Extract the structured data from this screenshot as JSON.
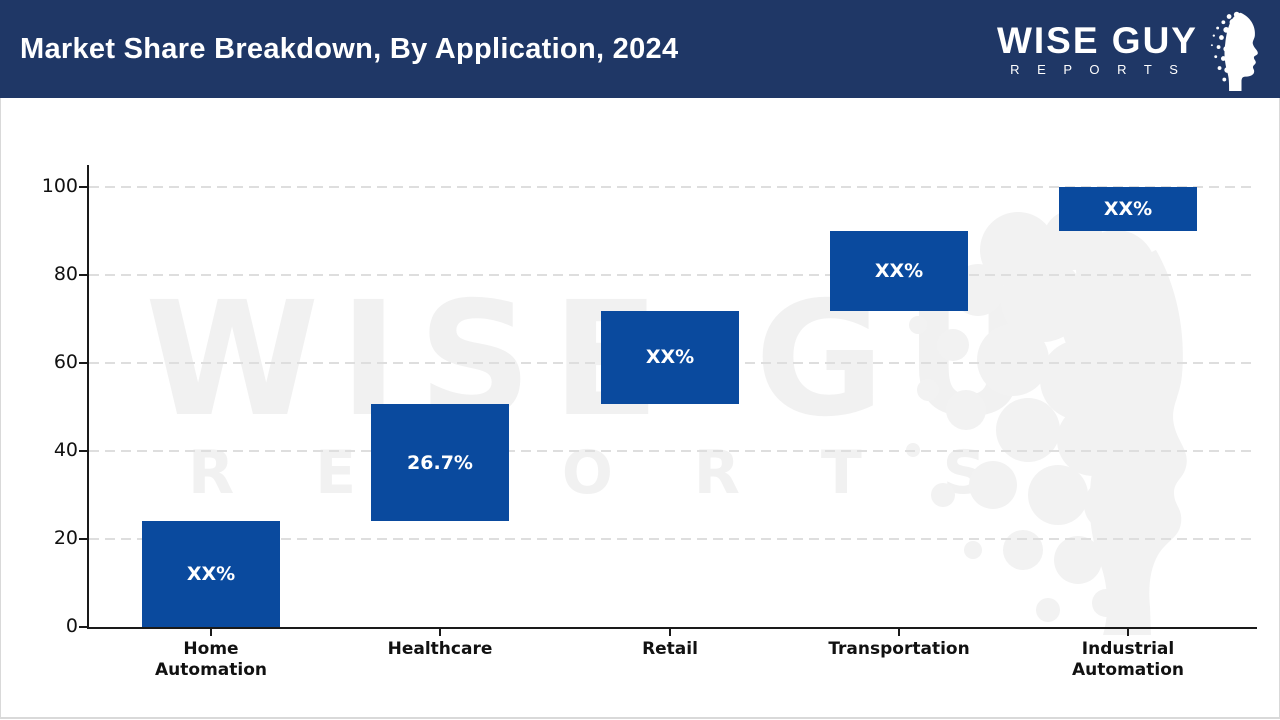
{
  "header": {
    "title": "Market Share Breakdown, By Application, 2024",
    "background_color": "#1F3766",
    "logo": {
      "line1": "WISE GUY",
      "line2": "R E P O R T S"
    }
  },
  "watermark": {
    "line1": "WISE GUY",
    "line2": "R E P O R T S"
  },
  "chart_data": {
    "type": "bar",
    "variant": "floating-stacked-breakdown",
    "title": "Market Share Breakdown, By Application, 2024",
    "categories": [
      "Home Automation",
      "Healthcare",
      "Retail",
      "Transportation",
      "Industrial Automation"
    ],
    "bars": [
      {
        "category": "Home Automation",
        "start": 0,
        "end": 24,
        "height": 24,
        "label": "XX%"
      },
      {
        "category": "Healthcare",
        "start": 24,
        "end": 50.7,
        "height": 26.7,
        "label": "26.7%"
      },
      {
        "category": "Retail",
        "start": 50.7,
        "end": 71.8,
        "height": 21.1,
        "label": "XX%"
      },
      {
        "category": "Transportation",
        "start": 71.8,
        "end": 90,
        "height": 18.2,
        "label": "XX%"
      },
      {
        "category": "Industrial Automation",
        "start": 90,
        "end": 100,
        "height": 10,
        "label": "XX%"
      }
    ],
    "xlabel": "",
    "ylabel": "",
    "yticks": [
      0,
      20,
      40,
      60,
      80,
      100
    ],
    "ylim": [
      0,
      105
    ],
    "grid": "horizontal-dashed",
    "legend": "none",
    "bar_color": "#0A4A9E",
    "bar_label_color": "#FFFFFF"
  },
  "colors": {
    "header_bg": "#1F3766",
    "bar": "#0A4A9E",
    "grid": "#DEDEDE",
    "axis": "#1A1A1A",
    "watermark": "#F1F1F1",
    "border": "#D9D9D9"
  }
}
